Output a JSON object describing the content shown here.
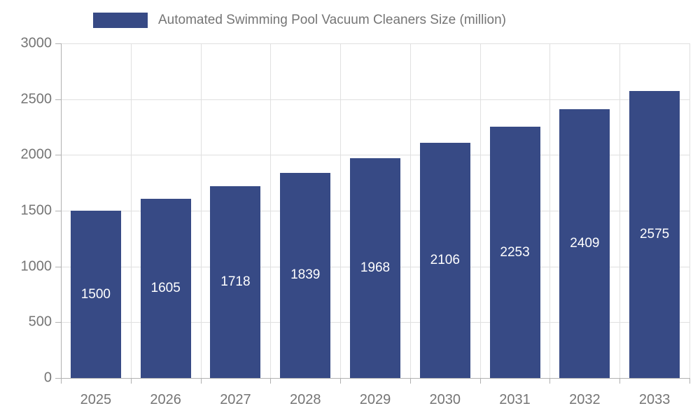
{
  "chart_data": {
    "type": "bar",
    "title": "Automated Swimming Pool Vacuum Cleaners Size (million)",
    "legend": {
      "label": "Automated Swimming Pool Vacuum Cleaners Size (million)",
      "position": "top"
    },
    "categories": [
      "2025",
      "2026",
      "2027",
      "2028",
      "2029",
      "2030",
      "2031",
      "2032",
      "2033"
    ],
    "series": [
      {
        "name": "Automated Swimming Pool Vacuum Cleaners Size (million)",
        "values": [
          1500,
          1605,
          1718,
          1839,
          1968,
          2106,
          2253,
          2409,
          2575
        ]
      }
    ],
    "value_labels_shown": true,
    "xlabel": "",
    "ylabel": "",
    "ylim": [
      0,
      3000
    ],
    "yticks": [
      0,
      500,
      1000,
      1500,
      2000,
      2500,
      3000
    ],
    "grid": true,
    "colors": {
      "bar": "#374a85",
      "value_label_text": "#ffffff",
      "axis_text": "#757575",
      "legend_text": "#757575",
      "axis_line": "#b0b0b0",
      "gridline": "#e0e0e0",
      "background": "#ffffff"
    }
  }
}
